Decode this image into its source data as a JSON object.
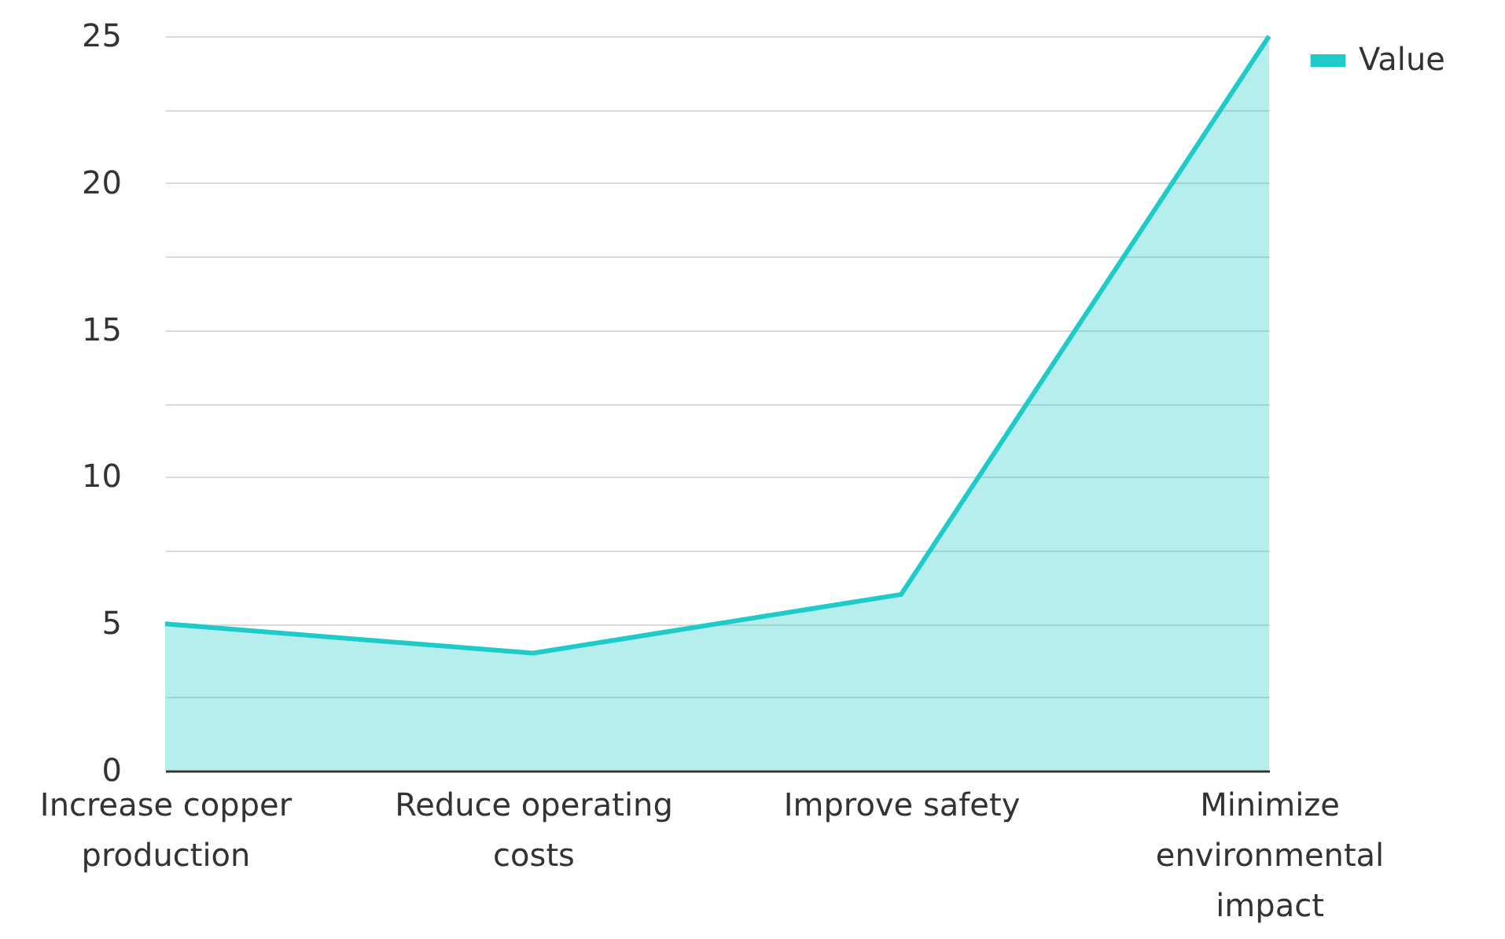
{
  "chart_data": {
    "type": "area",
    "categories": [
      "Increase copper production",
      "Reduce operating costs",
      "Improve safety",
      "Minimize environmental impact"
    ],
    "series": [
      {
        "name": "Value",
        "color": "#1ecbc9",
        "values": [
          5,
          4,
          6,
          25
        ]
      }
    ],
    "ylim": [
      0,
      25
    ],
    "yticks": [
      0,
      {
        "value": 2.5,
        "label": null
      },
      5,
      {
        "value": 7.5,
        "label": null
      },
      10,
      {
        "value": 12.5,
        "label": null
      },
      15,
      {
        "value": 17.5,
        "label": null
      },
      20,
      {
        "value": 22.5,
        "label": null
      },
      25
    ],
    "grid": "y",
    "legend": "top right"
  }
}
